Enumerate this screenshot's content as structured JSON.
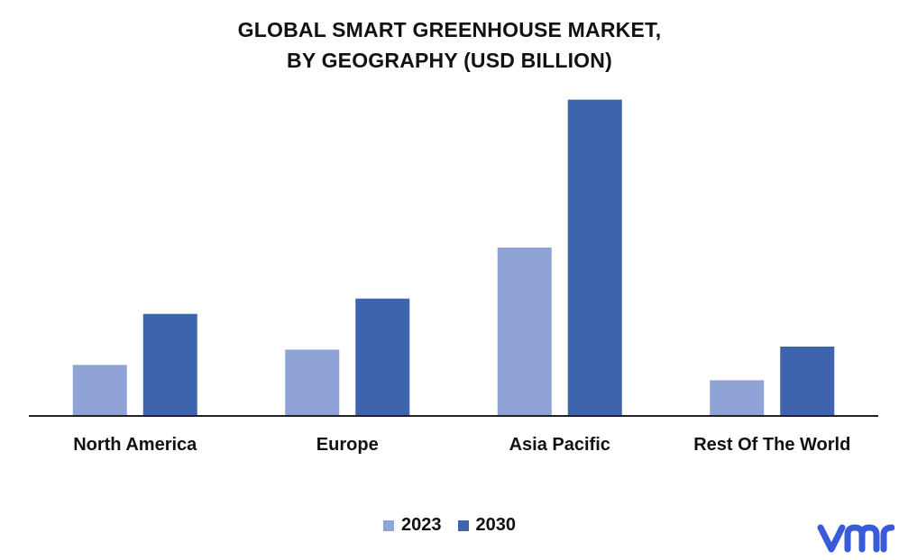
{
  "title_lines": [
    "GLOBAL SMART GREENHOUSE MARKET,",
    "BY GEOGRAPHY (USD BILLION)"
  ],
  "logo_text": "vmr",
  "colors": {
    "series_2023": "#8fa3d6",
    "series_2030": "#3e64ae",
    "axis": "#222222",
    "logo": "#3a5bd9"
  },
  "chart_data": {
    "type": "bar",
    "title": "GLOBAL SMART GREENHOUSE MARKET, BY GEOGRAPHY (USD BILLION)",
    "categories": [
      "North America",
      "Europe",
      "Asia Pacific",
      "Rest Of The World"
    ],
    "series": [
      {
        "name": "2023",
        "values": [
          0.5,
          0.65,
          1.65,
          0.35
        ]
      },
      {
        "name": "2030",
        "values": [
          1.0,
          1.15,
          3.1,
          0.68
        ]
      }
    ],
    "ylim": [
      0,
      3.3
    ],
    "grid": false,
    "legend_position": "bottom",
    "xlabel": "",
    "ylabel": ""
  }
}
